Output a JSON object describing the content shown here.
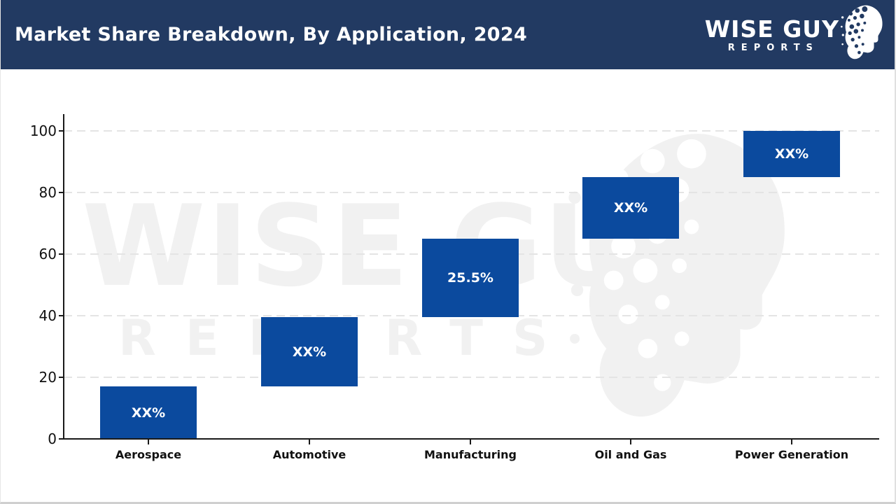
{
  "header": {
    "title": "Market Share Breakdown, By Application, 2024",
    "bg_color": "#223A62",
    "text_color": "#ffffff",
    "logo": {
      "line1": "WISE GUY",
      "line2": "REPORTS"
    }
  },
  "watermark": {
    "line1": "WISE GUY",
    "line2": "REPORTS",
    "color": "#f1f1f1"
  },
  "chart_data": {
    "type": "bar",
    "subtype": "floating-waterfall",
    "title": "",
    "xlabel": "",
    "ylabel": "",
    "categories": [
      "Aerospace",
      "Automotive",
      "Manufacturing",
      "Oil and Gas",
      "Power Generation"
    ],
    "series": [
      {
        "name": "Market share (%)",
        "segments": [
          {
            "category": "Aerospace",
            "start": 0,
            "end": 17,
            "label": "XX%"
          },
          {
            "category": "Automotive",
            "start": 17,
            "end": 39.5,
            "label": "XX%"
          },
          {
            "category": "Manufacturing",
            "start": 39.5,
            "end": 65,
            "label": "25.5%"
          },
          {
            "category": "Oil and Gas",
            "start": 65,
            "end": 85,
            "label": "XX%"
          },
          {
            "category": "Power Generation",
            "start": 85,
            "end": 100,
            "label": "XX%"
          }
        ]
      }
    ],
    "yticks": [
      0,
      20,
      40,
      60,
      80,
      100
    ],
    "ylim": [
      0,
      105
    ],
    "grid": "horizontal-dashed",
    "legend": "none",
    "bar_color": "#0B4A9E",
    "bar_label_color": "#ffffff",
    "gridline_color": "#e4e4e4",
    "axis_color": "#1a1a1a"
  }
}
